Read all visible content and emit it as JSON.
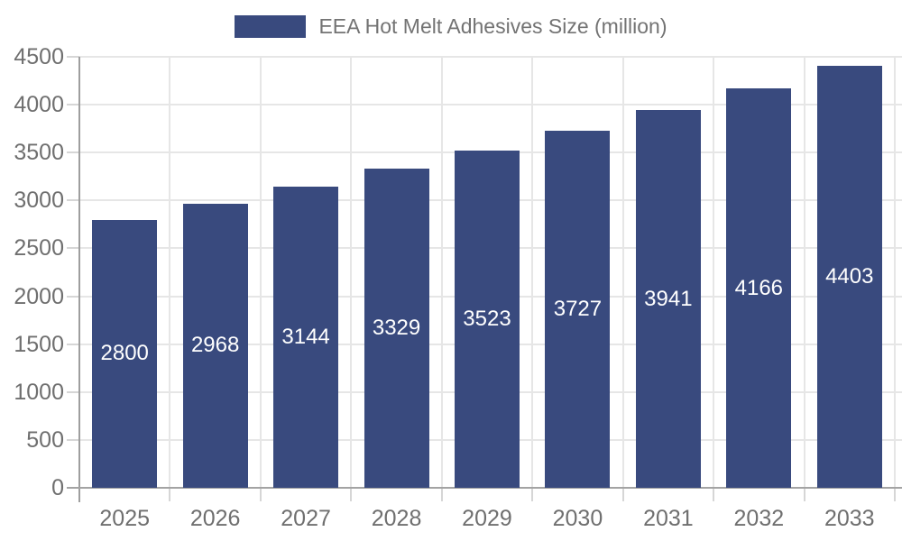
{
  "chart_data": {
    "type": "bar",
    "title": "EEA Hot Melt Adhesives Size (million)",
    "series": [
      {
        "name": "EEA Hot Melt Adhesives Size (million)",
        "values": [
          2800,
          2968,
          3144,
          3329,
          3523,
          3727,
          3941,
          4166,
          4403
        ]
      }
    ],
    "categories": [
      "2025",
      "2026",
      "2027",
      "2028",
      "2029",
      "2030",
      "2031",
      "2032",
      "2033"
    ],
    "xlabel": "",
    "ylabel": "",
    "ylim": [
      0,
      4500
    ],
    "y_ticks": [
      0,
      500,
      1000,
      1500,
      2000,
      2500,
      3000,
      3500,
      4000,
      4500
    ],
    "grid": true,
    "legend_position": "top-center",
    "value_labels": "centered-inside-bars",
    "colors": {
      "bar": "#394A7E",
      "value_label": "#FFFFFF",
      "axis_text": "#6F6F6F",
      "legend_text": "#737373",
      "gridline": "#E6E6E6",
      "axis_line": "#9E9E9E"
    }
  }
}
